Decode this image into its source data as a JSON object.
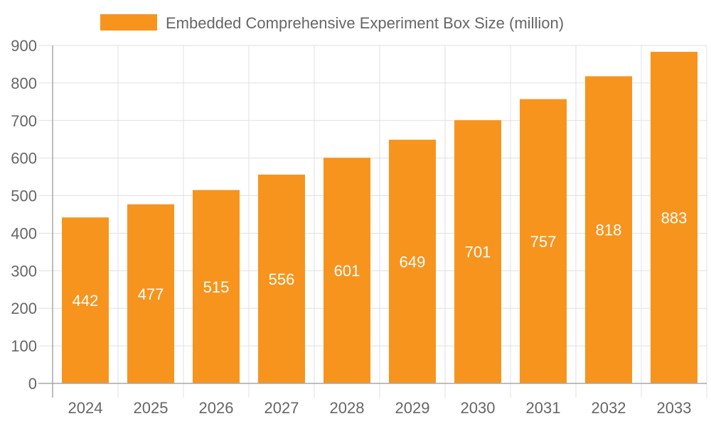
{
  "chart_data": {
    "type": "bar",
    "categories": [
      "2024",
      "2025",
      "2026",
      "2027",
      "2028",
      "2029",
      "2030",
      "2031",
      "2032",
      "2033"
    ],
    "series": [
      {
        "name": "Embedded Comprehensive Experiment Box Size (million)",
        "values": [
          442,
          477,
          515,
          556,
          601,
          649,
          701,
          757,
          818,
          883
        ]
      }
    ],
    "ylim": [
      0,
      900
    ],
    "yticks": [
      0,
      100,
      200,
      300,
      400,
      500,
      600,
      700,
      800,
      900
    ],
    "grid": true,
    "legend_position": "top",
    "data_labels": true,
    "colors": {
      "bar": "#F7941E",
      "grid": "#E0E0E0",
      "axis": "#A8A8A8",
      "text": "#666666",
      "label": "#FFFFFF"
    }
  }
}
